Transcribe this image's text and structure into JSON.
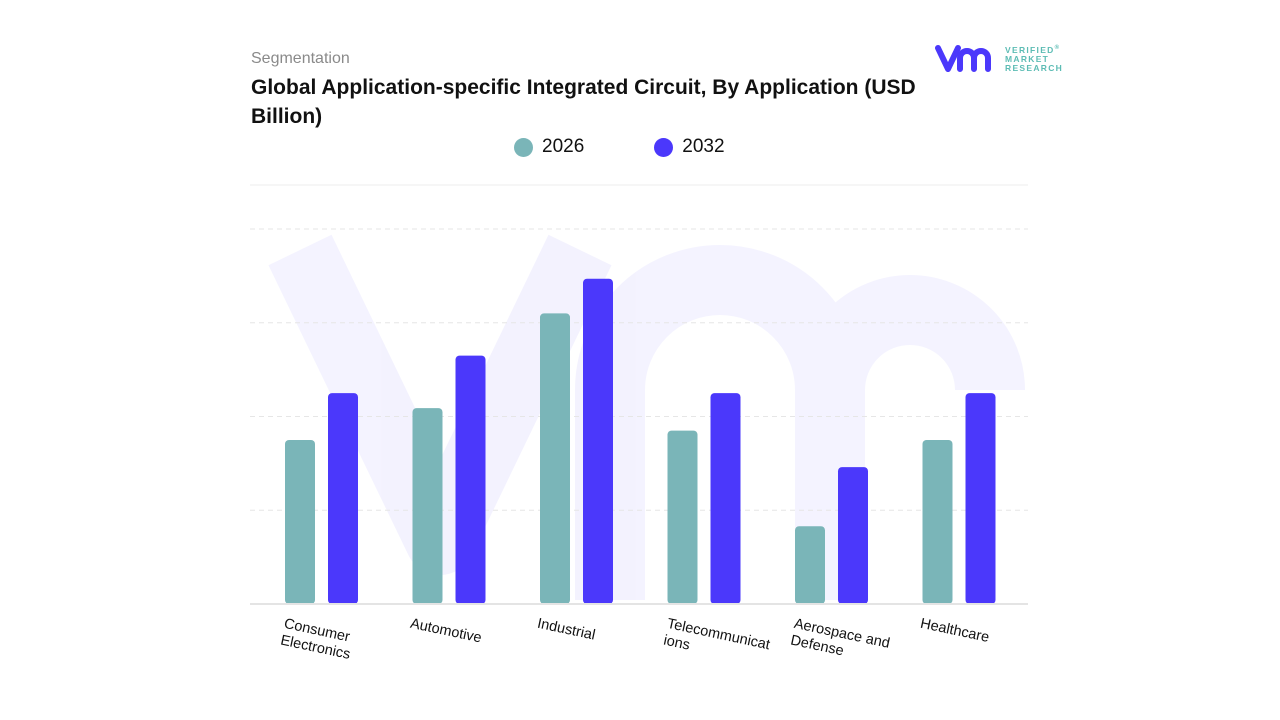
{
  "header": {
    "segment_label": "Segmentation",
    "title": "Global Application-specific Integrated Circuit, By Application (USD Billion)"
  },
  "logo": {
    "line1": "VERIFIED",
    "line2": "MARKET",
    "line3": "RESEARCH",
    "registered": "®"
  },
  "chart_data": {
    "type": "bar",
    "title": "Global Application-specific Integrated Circuit, By Application (USD Billion)",
    "categories": [
      "Consumer Electronics",
      "Automotive",
      "Industrial",
      "Telecommunications",
      "Aerospace and Defense",
      "Healthcare"
    ],
    "category_labels": [
      "Consumer\nElectronics",
      "Automotive",
      "Industrial",
      "Telecommunicat\nions",
      "Aerospace and\nDefense",
      "Healthcare"
    ],
    "series": [
      {
        "name": "2026",
        "color": "#7ab5b8",
        "values": [
          1.75,
          2.09,
          3.1,
          1.85,
          0.83,
          1.75
        ]
      },
      {
        "name": "2032",
        "color": "#4b38fb",
        "values": [
          2.25,
          2.65,
          3.47,
          2.25,
          1.46,
          2.25
        ]
      }
    ],
    "ylim": [
      0,
      4
    ],
    "grid": true,
    "gridlines": [
      1,
      2,
      3,
      4
    ],
    "legend": "top-center",
    "xlabel": "",
    "ylabel": ""
  }
}
